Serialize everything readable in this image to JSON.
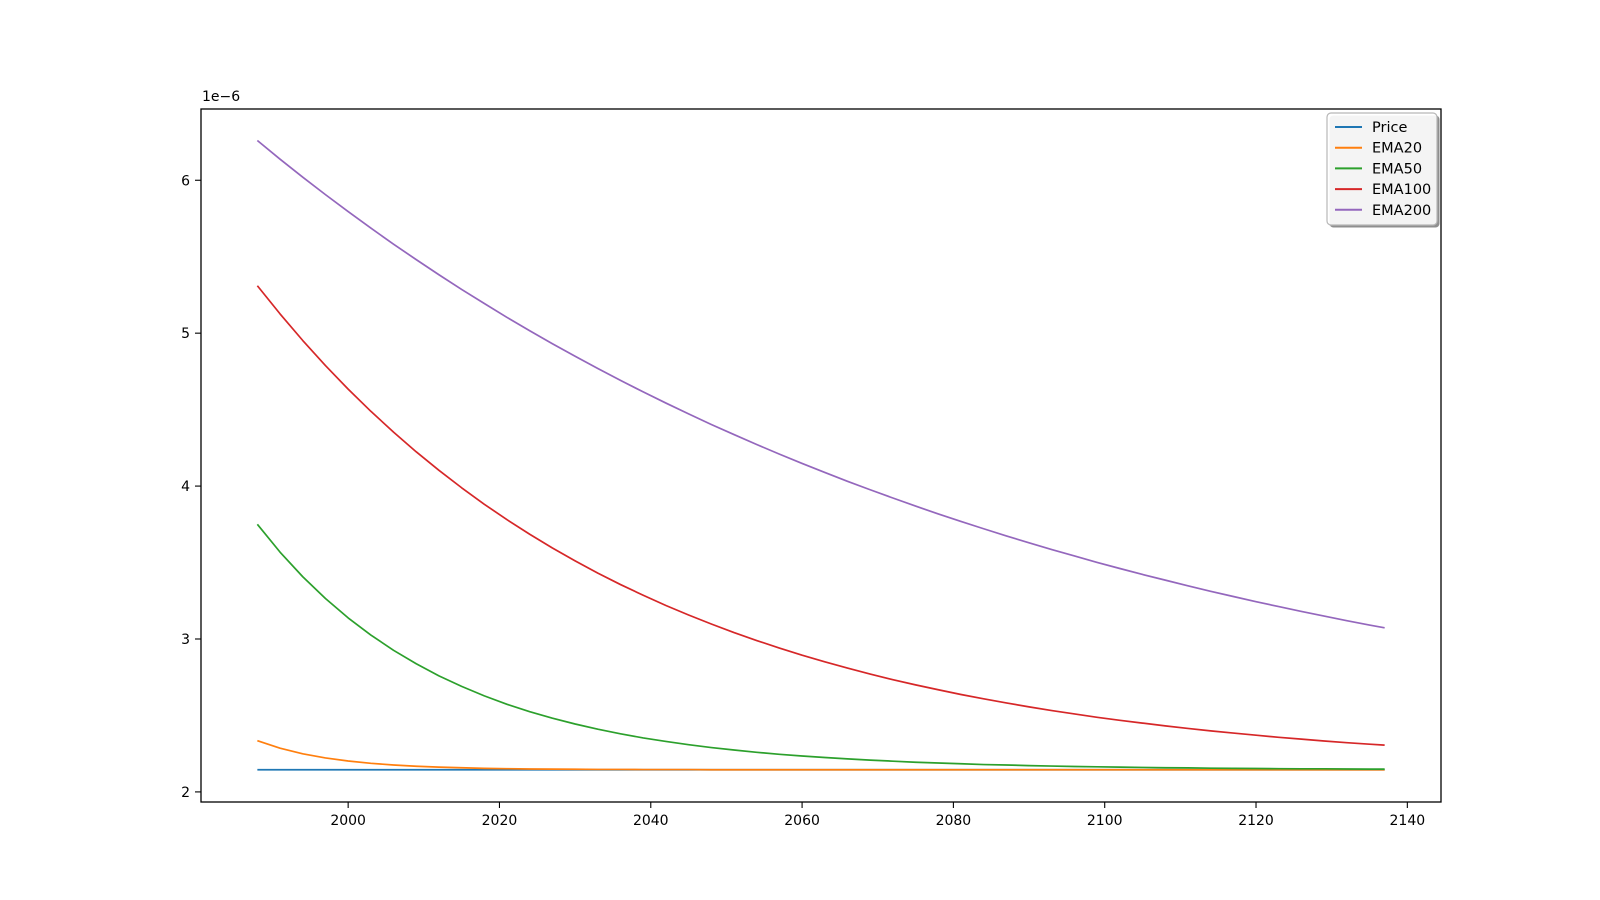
{
  "chart_data": {
    "type": "line",
    "title": "",
    "xlabel": "",
    "ylabel": "",
    "y_offset_label": "1e−6",
    "y_unit_multiplier": 1e-06,
    "grid": false,
    "xlim": [
      1980.55,
      2144.45
    ],
    "ylim": [
      1.934,
      6.466
    ],
    "x_ticks": [
      2000,
      2020,
      2040,
      2060,
      2080,
      2100,
      2120,
      2140
    ],
    "y_ticks": [
      2,
      3,
      4,
      5,
      6
    ],
    "legend": {
      "position": "upper right",
      "shadow": true,
      "frame_color": "#b7b7b7"
    },
    "x": [
      1988,
      1991,
      1994,
      1997,
      2000,
      2003,
      2006,
      2009,
      2012,
      2015,
      2018,
      2021,
      2024,
      2027,
      2030,
      2033,
      2036,
      2039,
      2042,
      2045,
      2048,
      2051,
      2054,
      2057,
      2060,
      2063,
      2066,
      2069,
      2072,
      2075,
      2078,
      2081,
      2084,
      2087,
      2090,
      2093,
      2096,
      2099,
      2102,
      2105,
      2108,
      2111,
      2114,
      2117,
      2120,
      2123,
      2126,
      2129,
      2132,
      2135,
      2137
    ],
    "series": [
      {
        "name": "Price",
        "color": "#1f77b4",
        "values": [
          2.145,
          2.145,
          2.145,
          2.145,
          2.145,
          2.145,
          2.145,
          2.145,
          2.145,
          2.145,
          2.145,
          2.145,
          2.145,
          2.145,
          2.145,
          2.145,
          2.145,
          2.145,
          2.145,
          2.145,
          2.145,
          2.145,
          2.145,
          2.145,
          2.145,
          2.145,
          2.145,
          2.145,
          2.145,
          2.145,
          2.145,
          2.145,
          2.145,
          2.145,
          2.145,
          2.145,
          2.145,
          2.145,
          2.145,
          2.145,
          2.145,
          2.145,
          2.145,
          2.145,
          2.145,
          2.145,
          2.145,
          2.145,
          2.145,
          2.145,
          2.145
        ]
      },
      {
        "name": "EMA20",
        "color": "#ff7f0e",
        "values": [
          2.335,
          2.286,
          2.249,
          2.222,
          2.202,
          2.187,
          2.176,
          2.168,
          2.162,
          2.158,
          2.154,
          2.152,
          2.15,
          2.149,
          2.148,
          2.147,
          2.147,
          2.146,
          2.146,
          2.146,
          2.145,
          2.145,
          2.145,
          2.145,
          2.145,
          2.145,
          2.145,
          2.145,
          2.145,
          2.145,
          2.145,
          2.145,
          2.145,
          2.145,
          2.145,
          2.145,
          2.145,
          2.145,
          2.145,
          2.145,
          2.145,
          2.145,
          2.145,
          2.145,
          2.145,
          2.145,
          2.145,
          2.145,
          2.145,
          2.145,
          2.145
        ]
      },
      {
        "name": "EMA50",
        "color": "#2ca02c",
        "values": [
          3.75,
          3.568,
          3.407,
          3.265,
          3.138,
          3.026,
          2.926,
          2.838,
          2.759,
          2.69,
          2.628,
          2.573,
          2.525,
          2.482,
          2.444,
          2.41,
          2.38,
          2.353,
          2.33,
          2.309,
          2.29,
          2.274,
          2.259,
          2.246,
          2.235,
          2.225,
          2.216,
          2.208,
          2.201,
          2.194,
          2.189,
          2.184,
          2.179,
          2.176,
          2.172,
          2.169,
          2.166,
          2.164,
          2.162,
          2.16,
          2.158,
          2.157,
          2.155,
          2.154,
          2.153,
          2.152,
          2.151,
          2.151,
          2.15,
          2.149,
          2.149
        ]
      },
      {
        "name": "EMA100",
        "color": "#d62728",
        "values": [
          5.31,
          5.126,
          4.952,
          4.788,
          4.634,
          4.489,
          4.353,
          4.224,
          4.103,
          3.989,
          3.881,
          3.78,
          3.685,
          3.595,
          3.511,
          3.431,
          3.356,
          3.286,
          3.219,
          3.157,
          3.098,
          3.042,
          2.99,
          2.941,
          2.894,
          2.851,
          2.81,
          2.771,
          2.734,
          2.7,
          2.668,
          2.637,
          2.609,
          2.582,
          2.556,
          2.532,
          2.51,
          2.488,
          2.468,
          2.45,
          2.432,
          2.415,
          2.399,
          2.385,
          2.371,
          2.357,
          2.345,
          2.333,
          2.322,
          2.312,
          2.306
        ]
      },
      {
        "name": "EMA200",
        "color": "#9467bd",
        "values": [
          6.26,
          6.138,
          6.02,
          5.906,
          5.795,
          5.687,
          5.582,
          5.481,
          5.382,
          5.286,
          5.194,
          5.103,
          5.016,
          4.931,
          4.849,
          4.769,
          4.691,
          4.616,
          4.543,
          4.472,
          4.403,
          4.337,
          4.272,
          4.209,
          4.148,
          4.089,
          4.031,
          3.976,
          3.922,
          3.869,
          3.818,
          3.769,
          3.721,
          3.674,
          3.629,
          3.585,
          3.543,
          3.501,
          3.461,
          3.422,
          3.385,
          3.348,
          3.312,
          3.278,
          3.244,
          3.212,
          3.18,
          3.15,
          3.12,
          3.091,
          3.073
        ]
      }
    ]
  }
}
